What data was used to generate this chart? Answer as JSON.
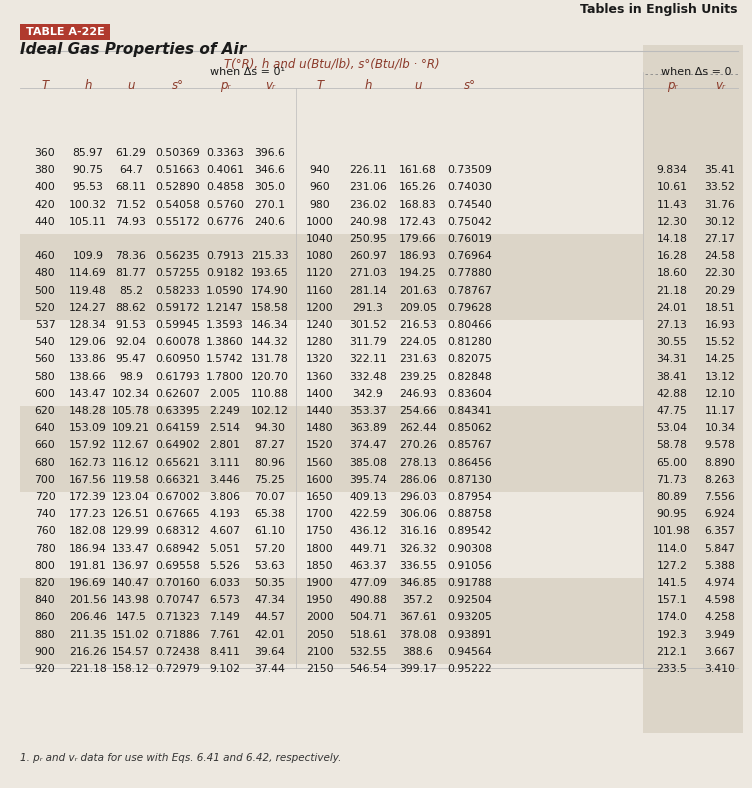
{
  "title_top_right": "Tables in English Units",
  "table_label": "TABLE A-22E",
  "table_title": "Ideal Gas Properties of Air",
  "header_center": "T(°R), h and u(Btu/lb), s°(Btu/lb · °R)",
  "when_ds0_left": "when Δs = 0¹",
  "when_ds0_right": "when Δs = 0",
  "footnote": "1. pᵣ and vᵣ data for use with Eqs. 6.41 and 6.42, respectively.",
  "bg_color": "#ede8e0",
  "stripe_color": "#dcd5c8",
  "right_panel_bg": "#dcd5c8",
  "table_label_bg": "#b03a2e",
  "table_label_color": "#ffffff",
  "header_italic_color": "#8b3a2a",
  "data_color": "#1a1a1a",
  "line_color": "#aaaaaa",
  "rows": [
    [
      360,
      85.97,
      61.29,
      "0.50369",
      "0.3363",
      "396.6",
      null,
      null,
      null,
      null,
      null,
      null
    ],
    [
      380,
      90.75,
      64.7,
      "0.51663",
      "0.4061",
      "346.6",
      940,
      226.11,
      161.68,
      "0.73509",
      "9.834",
      "35.41"
    ],
    [
      400,
      95.53,
      68.11,
      "0.52890",
      "0.4858",
      "305.0",
      960,
      231.06,
      165.26,
      "0.74030",
      "10.61",
      "33.52"
    ],
    [
      420,
      100.32,
      71.52,
      "0.54058",
      "0.5760",
      "270.1",
      980,
      236.02,
      168.83,
      "0.74540",
      "11.43",
      "31.76"
    ],
    [
      440,
      105.11,
      74.93,
      "0.55172",
      "0.6776",
      "240.6",
      1000,
      240.98,
      172.43,
      "0.75042",
      "12.30",
      "30.12"
    ],
    [
      null,
      null,
      null,
      null,
      null,
      null,
      1040,
      250.95,
      179.66,
      "0.76019",
      "14.18",
      "27.17"
    ],
    [
      460,
      109.9,
      78.36,
      "0.56235",
      "0.7913",
      "215.33",
      1080,
      260.97,
      186.93,
      "0.76964",
      "16.28",
      "24.58"
    ],
    [
      480,
      114.69,
      81.77,
      "0.57255",
      "0.9182",
      "193.65",
      1120,
      271.03,
      194.25,
      "0.77880",
      "18.60",
      "22.30"
    ],
    [
      500,
      119.48,
      85.2,
      "0.58233",
      "1.0590",
      "174.90",
      1160,
      281.14,
      201.63,
      "0.78767",
      "21.18",
      "20.29"
    ],
    [
      520,
      124.27,
      88.62,
      "0.59172",
      "1.2147",
      "158.58",
      1200,
      291.3,
      209.05,
      "0.79628",
      "24.01",
      "18.51"
    ],
    [
      537,
      128.34,
      91.53,
      "0.59945",
      "1.3593",
      "146.34",
      1240,
      301.52,
      216.53,
      "0.80466",
      "27.13",
      "16.93"
    ],
    [
      540,
      129.06,
      92.04,
      "0.60078",
      "1.3860",
      "144.32",
      1280,
      311.79,
      224.05,
      "0.81280",
      "30.55",
      "15.52"
    ],
    [
      560,
      133.86,
      95.47,
      "0.60950",
      "1.5742",
      "131.78",
      1320,
      322.11,
      231.63,
      "0.82075",
      "34.31",
      "14.25"
    ],
    [
      580,
      138.66,
      98.9,
      "0.61793",
      "1.7800",
      "120.70",
      1360,
      332.48,
      239.25,
      "0.82848",
      "38.41",
      "13.12"
    ],
    [
      600,
      143.47,
      102.34,
      "0.62607",
      "2.005",
      "110.88",
      1400,
      342.9,
      246.93,
      "0.83604",
      "42.88",
      "12.10"
    ],
    [
      620,
      148.28,
      105.78,
      "0.63395",
      "2.249",
      "102.12",
      1440,
      353.37,
      254.66,
      "0.84341",
      "47.75",
      "11.17"
    ],
    [
      640,
      153.09,
      109.21,
      "0.64159",
      "2.514",
      "94.30",
      1480,
      363.89,
      262.44,
      "0.85062",
      "53.04",
      "10.34"
    ],
    [
      660,
      157.92,
      112.67,
      "0.64902",
      "2.801",
      "87.27",
      1520,
      374.47,
      270.26,
      "0.85767",
      "58.78",
      "9.578"
    ],
    [
      680,
      162.73,
      116.12,
      "0.65621",
      "3.111",
      "80.96",
      1560,
      385.08,
      278.13,
      "0.86456",
      "65.00",
      "8.890"
    ],
    [
      700,
      167.56,
      119.58,
      "0.66321",
      "3.446",
      "75.25",
      1600,
      395.74,
      286.06,
      "0.87130",
      "71.73",
      "8.263"
    ],
    [
      720,
      172.39,
      123.04,
      "0.67002",
      "3.806",
      "70.07",
      1650,
      409.13,
      296.03,
      "0.87954",
      "80.89",
      "7.556"
    ],
    [
      740,
      177.23,
      126.51,
      "0.67665",
      "4.193",
      "65.38",
      1700,
      422.59,
      306.06,
      "0.88758",
      "90.95",
      "6.924"
    ],
    [
      760,
      182.08,
      129.99,
      "0.68312",
      "4.607",
      "61.10",
      1750,
      436.12,
      316.16,
      "0.89542",
      "101.98",
      "6.357"
    ],
    [
      780,
      186.94,
      133.47,
      "0.68942",
      "5.051",
      "57.20",
      1800,
      449.71,
      326.32,
      "0.90308",
      "114.0",
      "5.847"
    ],
    [
      800,
      191.81,
      136.97,
      "0.69558",
      "5.526",
      "53.63",
      1850,
      463.37,
      336.55,
      "0.91056",
      "127.2",
      "5.388"
    ],
    [
      820,
      196.69,
      140.47,
      "0.70160",
      "6.033",
      "50.35",
      1900,
      477.09,
      346.85,
      "0.91788",
      "141.5",
      "4.974"
    ],
    [
      840,
      201.56,
      143.98,
      "0.70747",
      "6.573",
      "47.34",
      1950,
      490.88,
      357.2,
      "0.92504",
      "157.1",
      "4.598"
    ],
    [
      860,
      206.46,
      147.5,
      "0.71323",
      "7.149",
      "44.57",
      2000,
      504.71,
      367.61,
      "0.93205",
      "174.0",
      "4.258"
    ],
    [
      880,
      211.35,
      151.02,
      "0.71886",
      "7.761",
      "42.01",
      2050,
      518.61,
      378.08,
      "0.93891",
      "192.3",
      "3.949"
    ],
    [
      900,
      216.26,
      154.57,
      "0.72438",
      "8.411",
      "39.64",
      2100,
      532.55,
      388.6,
      "0.94564",
      "212.1",
      "3.667"
    ],
    [
      920,
      221.18,
      158.12,
      "0.72979",
      "9.102",
      "37.44",
      2150,
      546.54,
      399.17,
      "0.95222",
      "233.5",
      "3.410"
    ]
  ],
  "shade_bands": [
    [
      0,
      5,
      false
    ],
    [
      5,
      6,
      false
    ],
    [
      6,
      11,
      true
    ],
    [
      11,
      16,
      false
    ],
    [
      16,
      21,
      true
    ],
    [
      21,
      26,
      false
    ],
    [
      26,
      31,
      true
    ]
  ]
}
